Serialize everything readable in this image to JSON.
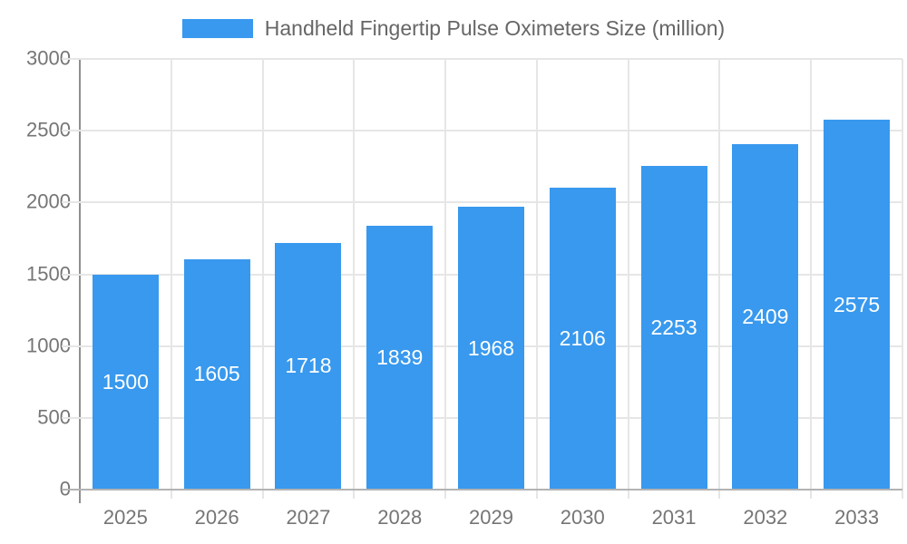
{
  "chart_data": {
    "type": "bar",
    "title": "Handheld Fingertip Pulse Oximeters Size (million)",
    "categories": [
      "2025",
      "2026",
      "2027",
      "2028",
      "2029",
      "2030",
      "2031",
      "2032",
      "2033"
    ],
    "values": [
      1500,
      1605,
      1718,
      1839,
      1968,
      2106,
      2253,
      2409,
      2575
    ],
    "xlabel": "",
    "ylabel": "",
    "ylim": [
      0,
      3000
    ],
    "yticks": [
      0,
      500,
      1000,
      1500,
      2000,
      2500,
      3000
    ],
    "grid": true,
    "legend_position": "top",
    "value_labels": "centered-inside-bars",
    "colors": {
      "bar": "#3899EE",
      "grid_line": "#E6E6E6",
      "axis_line": "#8F8F8F",
      "baseline": "#B3B3B3",
      "tick_label": "#757575",
      "legend_text": "#666666",
      "value_label": "#FFFFFF"
    }
  }
}
